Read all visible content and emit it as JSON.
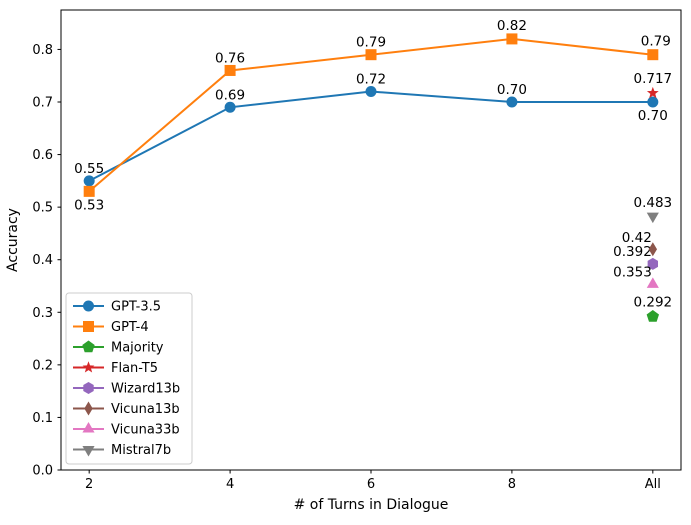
{
  "figure": {
    "background": "#ffffff"
  },
  "chart_data": {
    "type": "line",
    "title": "",
    "xlabel": "# of Turns in Dialogue",
    "ylabel": "Accuracy",
    "x_tick_labels": [
      "2",
      "4",
      "6",
      "8",
      "All"
    ],
    "y_tick_labels": [
      "0.0",
      "0.1",
      "0.2",
      "0.3",
      "0.4",
      "0.5",
      "0.6",
      "0.7",
      "0.8"
    ],
    "y_ticks": [
      0.0,
      0.1,
      0.2,
      0.3,
      0.4,
      0.5,
      0.6,
      0.7,
      0.8
    ],
    "ylim": [
      0,
      0.875
    ],
    "grid": false,
    "legend_position": "lower-left",
    "axis_color": "#000000",
    "series": [
      {
        "name": "GPT-3.5",
        "color": "#1f77b4",
        "marker": "circle",
        "line": true,
        "points": [
          {
            "x": 0,
            "y": 0.55,
            "label": "0.55",
            "dx": 0,
            "dy": -8,
            "anchor": "middle"
          },
          {
            "x": 1,
            "y": 0.69,
            "label": "0.69",
            "dx": 0,
            "dy": -8,
            "anchor": "middle"
          },
          {
            "x": 2,
            "y": 0.72,
            "label": "0.72",
            "dx": 0,
            "dy": -8,
            "anchor": "middle"
          },
          {
            "x": 3,
            "y": 0.7,
            "label": "0.70",
            "dx": 0,
            "dy": -8,
            "anchor": "middle"
          },
          {
            "x": 4,
            "y": 0.7,
            "label": "0.70",
            "dx": 0,
            "dy": 18,
            "anchor": "middle"
          }
        ]
      },
      {
        "name": "GPT-4",
        "color": "#ff7f0e",
        "marker": "square",
        "line": true,
        "points": [
          {
            "x": 0,
            "y": 0.53,
            "label": "0.53",
            "dx": 0,
            "dy": 18,
            "anchor": "middle"
          },
          {
            "x": 1,
            "y": 0.76,
            "label": "0.76",
            "dx": 0,
            "dy": -8,
            "anchor": "middle"
          },
          {
            "x": 2,
            "y": 0.79,
            "label": "0.79",
            "dx": 0,
            "dy": -8,
            "anchor": "middle"
          },
          {
            "x": 3,
            "y": 0.82,
            "label": "0.82",
            "dx": 0,
            "dy": -9,
            "anchor": "middle"
          },
          {
            "x": 4,
            "y": 0.79,
            "label": "0.79",
            "dx": 3,
            "dy": -9,
            "anchor": "middle"
          }
        ]
      },
      {
        "name": "Majority",
        "color": "#2ca02c",
        "marker": "pentagon",
        "line": false,
        "points": [
          {
            "x": 4,
            "y": 0.292,
            "label": "0.292",
            "dx": 0,
            "dy": -10,
            "anchor": "middle"
          }
        ]
      },
      {
        "name": "Flan-T5",
        "color": "#d62728",
        "marker": "star",
        "line": false,
        "points": [
          {
            "x": 4,
            "y": 0.717,
            "label": "0.717",
            "dx": 0,
            "dy": -10,
            "anchor": "middle"
          }
        ]
      },
      {
        "name": "Wizard13b",
        "color": "#9467bd",
        "marker": "hexagon",
        "line": false,
        "points": [
          {
            "x": 4,
            "y": 0.392,
            "label": "0.392",
            "dx": -1,
            "dy": -8,
            "anchor": "end"
          }
        ]
      },
      {
        "name": "Vicuna13b",
        "color": "#8c564b",
        "marker": "diamond",
        "line": false,
        "points": [
          {
            "x": 4,
            "y": 0.42,
            "label": "0.42",
            "dx": -1,
            "dy": -7,
            "anchor": "end"
          }
        ]
      },
      {
        "name": "Vicuna33b",
        "color": "#e377c2",
        "marker": "triangle-up",
        "line": false,
        "points": [
          {
            "x": 4,
            "y": 0.353,
            "label": "0.353",
            "dx": -1,
            "dy": -8,
            "anchor": "end"
          }
        ]
      },
      {
        "name": "Mistral7b",
        "color": "#7f7f7f",
        "marker": "triangle-down",
        "line": false,
        "points": [
          {
            "x": 4,
            "y": 0.483,
            "label": "0.483",
            "dx": 0,
            "dy": -9,
            "anchor": "middle"
          }
        ]
      }
    ]
  }
}
